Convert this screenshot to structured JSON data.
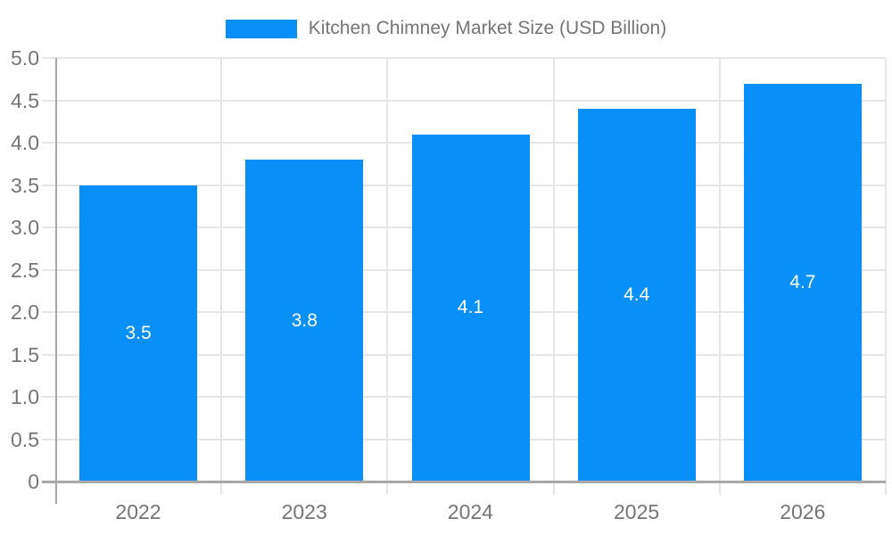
{
  "chart_data": {
    "type": "bar",
    "title": "Kitchen Chimney Market Size (USD Billion)",
    "categories": [
      "2022",
      "2023",
      "2024",
      "2025",
      "2026"
    ],
    "values": [
      3.5,
      3.8,
      4.1,
      4.4,
      4.7
    ],
    "value_labels": [
      "3.5",
      "3.8",
      "4.1",
      "4.4",
      "4.7"
    ],
    "xlabel": "",
    "ylabel": "",
    "ylim": [
      0,
      5
    ],
    "ytick_step": 0.5,
    "ytick_labels": [
      "0",
      "0.5",
      "1.0",
      "1.5",
      "2.0",
      "2.5",
      "3.0",
      "3.5",
      "4.0",
      "4.5",
      "5.0"
    ],
    "legend_position": "top-center",
    "grid": true,
    "colors": {
      "bar": "#0890f8",
      "grid": "#e6e6e6",
      "axis": "#a8a8a8",
      "label_text": "#757575",
      "value_text": "#ffffff",
      "background": "#ffffff"
    }
  }
}
